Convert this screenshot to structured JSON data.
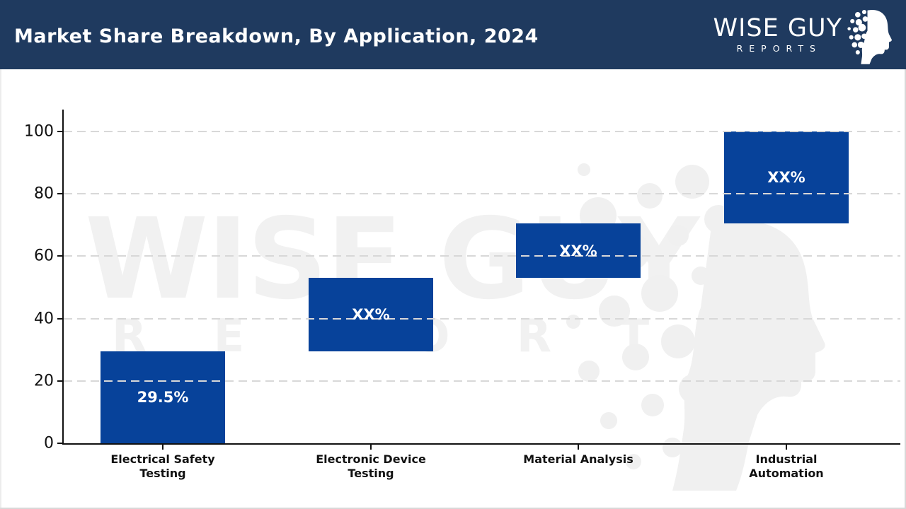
{
  "header": {
    "title": "Market Share Breakdown, By Application, 2024",
    "brand_line1": "WISE GUY",
    "brand_line2": "REPORTS"
  },
  "watermark": {
    "line1": "WISE GUY",
    "line2": "REPORTS"
  },
  "chart_data": {
    "type": "bar",
    "subtype": "floating-waterfall",
    "title": "Market Share Breakdown, By Application, 2024",
    "categories": [
      "Electrical Safety Testing",
      "Electronic Device Testing",
      "Material Analysis",
      "Industrial Automation"
    ],
    "segments": [
      {
        "category": "Electrical Safety Testing",
        "start": 0,
        "end": 29.5,
        "label": "29.5%"
      },
      {
        "category": "Electronic Device Testing",
        "start": 29.5,
        "end": 53,
        "label": "XX%"
      },
      {
        "category": "Material Analysis",
        "start": 53,
        "end": 70.5,
        "label": "XX%"
      },
      {
        "category": "Industrial Automation",
        "start": 70.5,
        "end": 100,
        "label": "XX%"
      }
    ],
    "yticks": [
      0,
      20,
      40,
      60,
      80,
      100
    ],
    "ylim": [
      0,
      100
    ],
    "xlabel": "",
    "ylabel": "",
    "grid": "horizontal-dashed",
    "legend": "none",
    "bar_color": "#07429a",
    "bar_label_color": "#ffffff"
  },
  "colors": {
    "header_bg": "#1f3a5f",
    "bar_blue": "#07429a",
    "gridline": "#d8d8d8",
    "watermark": "#f1f1f1",
    "axis": "#111111"
  }
}
